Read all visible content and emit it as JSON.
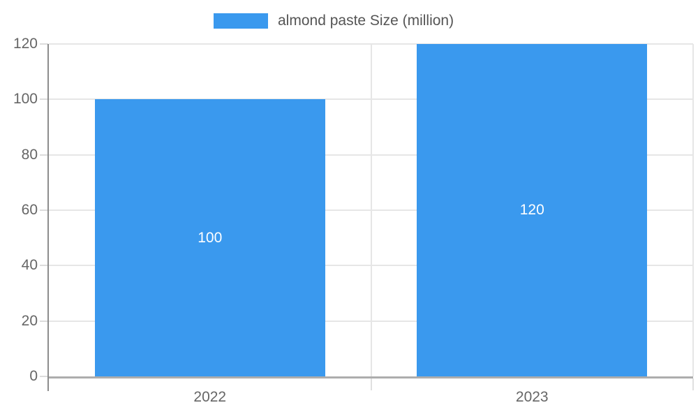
{
  "chart_data": {
    "type": "bar",
    "title": "almond paste Size (million)",
    "categories": [
      "2022",
      "2023"
    ],
    "series": [
      {
        "name": "almond paste Size (million)",
        "values": [
          100,
          120
        ]
      }
    ],
    "value_labels": [
      "100",
      "120"
    ],
    "xlabel": "",
    "ylabel": "",
    "ylim": [
      0,
      120
    ],
    "yticks": [
      0,
      20,
      40,
      60,
      80,
      100,
      120
    ],
    "grid": true,
    "legend_position": "top",
    "colors": {
      "bar": "#3A99EE",
      "value_label": "#FFFFFF",
      "axis_text": "#666666",
      "legend_text": "#555555",
      "gridline": "#E6E6E6",
      "axis_line": "#8C8C8C",
      "baseline": "#ADADAD"
    }
  }
}
